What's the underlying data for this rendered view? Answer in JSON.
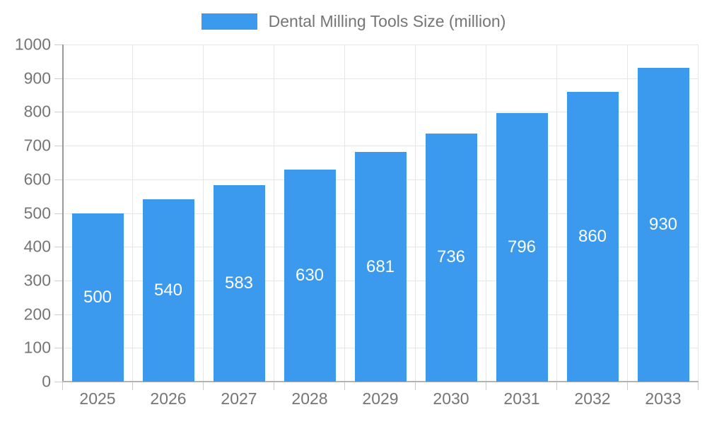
{
  "legend": {
    "label": "Dental Milling Tools Size (million)"
  },
  "chart_data": {
    "type": "bar",
    "title": "Dental Milling Tools Size (million)",
    "categories": [
      "2025",
      "2026",
      "2027",
      "2028",
      "2029",
      "2030",
      "2031",
      "2032",
      "2033"
    ],
    "values": [
      500,
      540,
      583,
      630,
      681,
      736,
      796,
      860,
      930
    ],
    "xlabel": "",
    "ylabel": "",
    "ylim": [
      0,
      1000
    ],
    "yticks": [
      0,
      100,
      200,
      300,
      400,
      500,
      600,
      700,
      800,
      900,
      1000
    ],
    "grid": true,
    "legend_position": "top-center",
    "bar_value_labels": "inside-center",
    "colors": {
      "bar": "#3b99ee",
      "bar_label_text": "#ffffff",
      "axis_text": "#757575",
      "legend_text": "#757575",
      "gridline": "#e6e6e6",
      "y_axis_line": "#999999",
      "x_axis_line": "#b3b3b3",
      "tick": "#cccccc",
      "background": "#ffffff"
    }
  }
}
